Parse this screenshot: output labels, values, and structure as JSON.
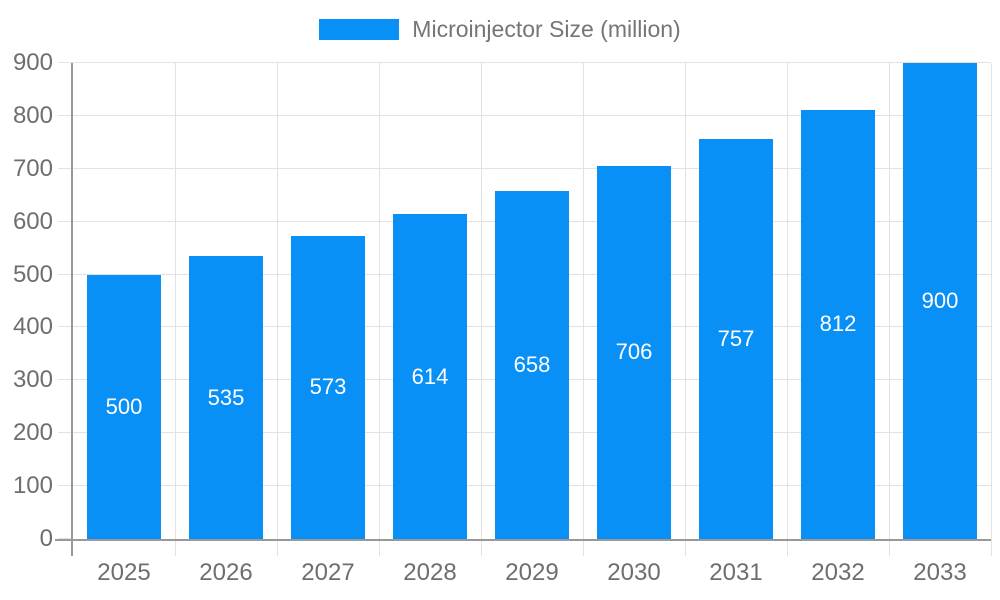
{
  "legend": {
    "label": "Microinjector Size (million)"
  },
  "colors": {
    "bar": "#0990f6",
    "grid": "#e2e2e2",
    "axis": "#999999",
    "axis_text": "#6e6e6e",
    "legend_text": "#757575",
    "bar_label_text": "#ffffff"
  },
  "chart_data": {
    "type": "bar",
    "title": "",
    "xlabel": "",
    "ylabel": "",
    "categories": [
      "2025",
      "2026",
      "2027",
      "2028",
      "2029",
      "2030",
      "2031",
      "2032",
      "2033"
    ],
    "series": [
      {
        "name": "Microinjector Size (million)",
        "values": [
          500,
          535,
          573,
          614,
          658,
          706,
          757,
          812,
          900
        ]
      }
    ],
    "data_labels": [
      "500",
      "535",
      "573",
      "614",
      "658",
      "706",
      "757",
      "812",
      "900"
    ],
    "ylim": [
      0,
      900
    ],
    "yticks": [
      "0",
      "100",
      "200",
      "300",
      "400",
      "500",
      "600",
      "700",
      "800",
      "900"
    ],
    "grid": true,
    "legend_position": "top"
  }
}
